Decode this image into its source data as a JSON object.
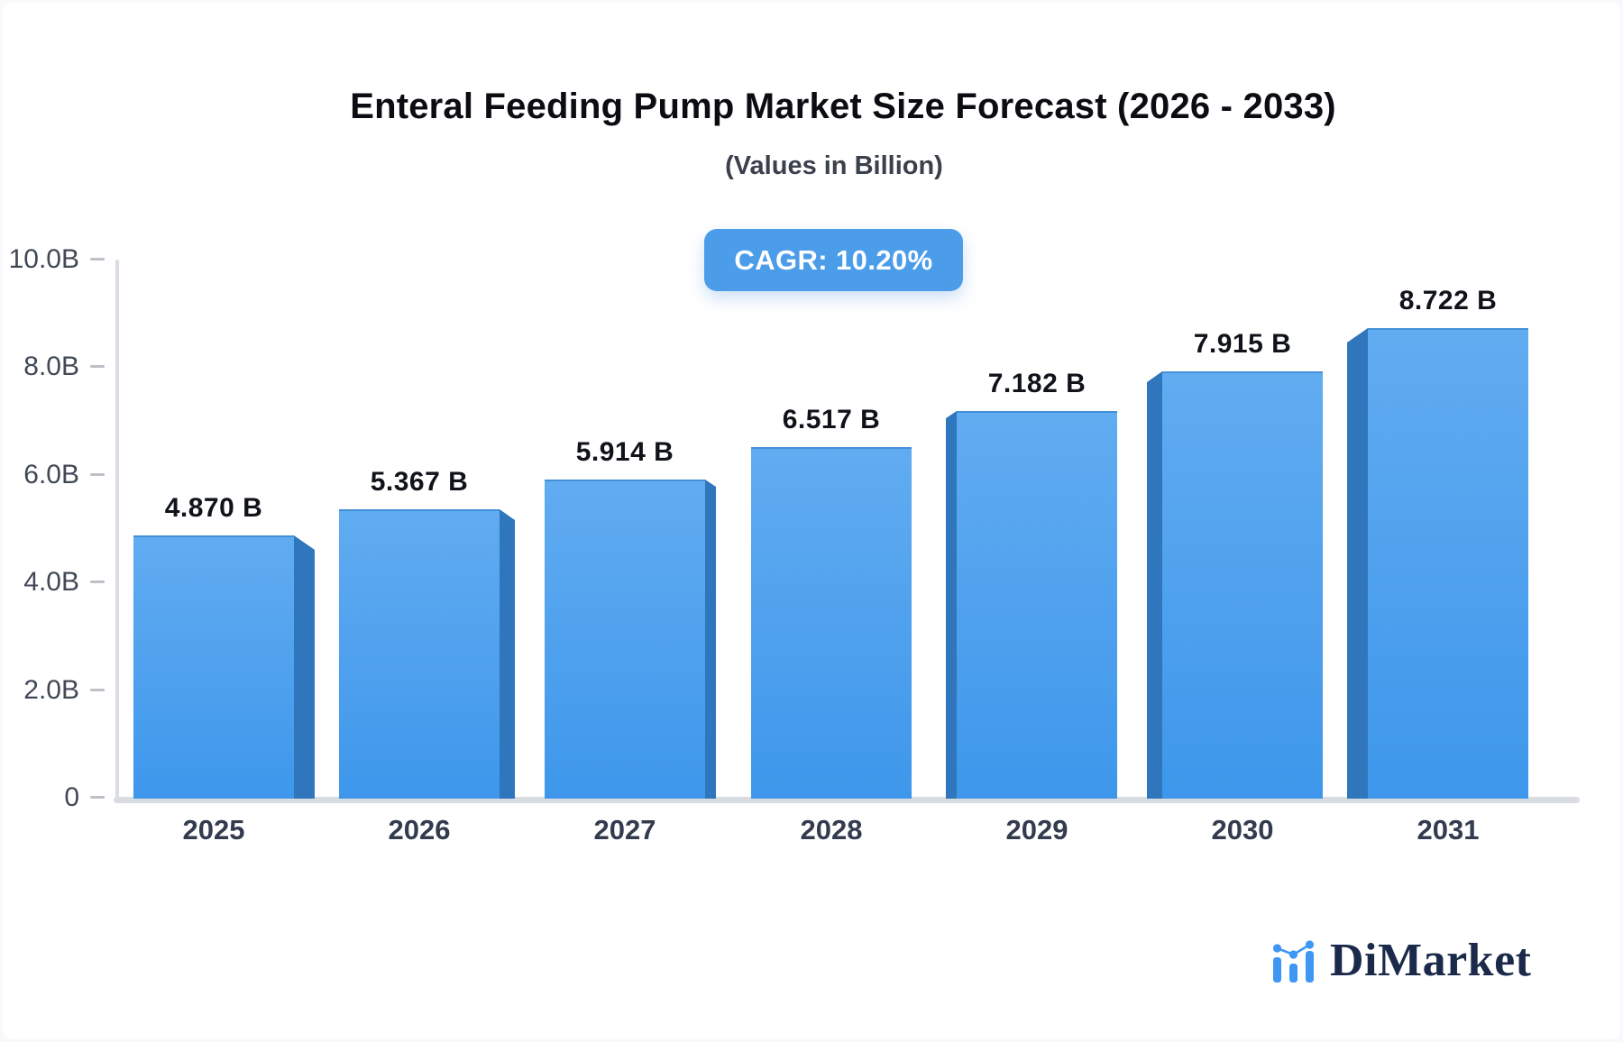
{
  "title": "Enteral Feeding Pump Market Size Forecast (2026 - 2033)",
  "subtitle": "(Values in Billion)",
  "badge": {
    "label": "CAGR: 10.20%"
  },
  "chart_data": {
    "type": "bar",
    "categories": [
      "2025",
      "2026",
      "2027",
      "2028",
      "2029",
      "2030",
      "2031"
    ],
    "values": [
      4.87,
      5.367,
      5.914,
      6.517,
      7.182,
      7.915,
      8.722
    ],
    "bar_labels": [
      "4.870 B",
      "5.367 B",
      "5.914 B",
      "6.517 B",
      "7.182 B",
      "7.915 B",
      "8.722 B"
    ],
    "title": "Enteral Feeding Pump Market Size Forecast (2026 - 2033)",
    "subtitle": "(Values in Billion)",
    "annotation": "CAGR: 10.20%",
    "xlabel": "",
    "ylabel": "",
    "ylim": [
      0,
      10
    ],
    "grid": false,
    "legend": false,
    "yticks": [
      {
        "value": 10,
        "label": "10.0B"
      },
      {
        "value": 8,
        "label": "8.0B"
      },
      {
        "value": 6,
        "label": "6.0B"
      },
      {
        "value": 4,
        "label": "4.0B"
      },
      {
        "value": 2,
        "label": "2.0B"
      },
      {
        "value": 0,
        "label": "0"
      }
    ]
  },
  "logo": {
    "text": "DiMarket"
  },
  "colors": {
    "bar_face_top": "#61acf1",
    "bar_face_bottom": "#3e97eb",
    "bar_face_edge": "#4490d8",
    "bar_side": "#2f76bc",
    "badge_bg": "#4c9de9",
    "axis": "#d9dce1",
    "tick_dash": "#bcc1c9",
    "logo_blue": "#3e97f2",
    "logo_navy": "#1b2a4a"
  }
}
